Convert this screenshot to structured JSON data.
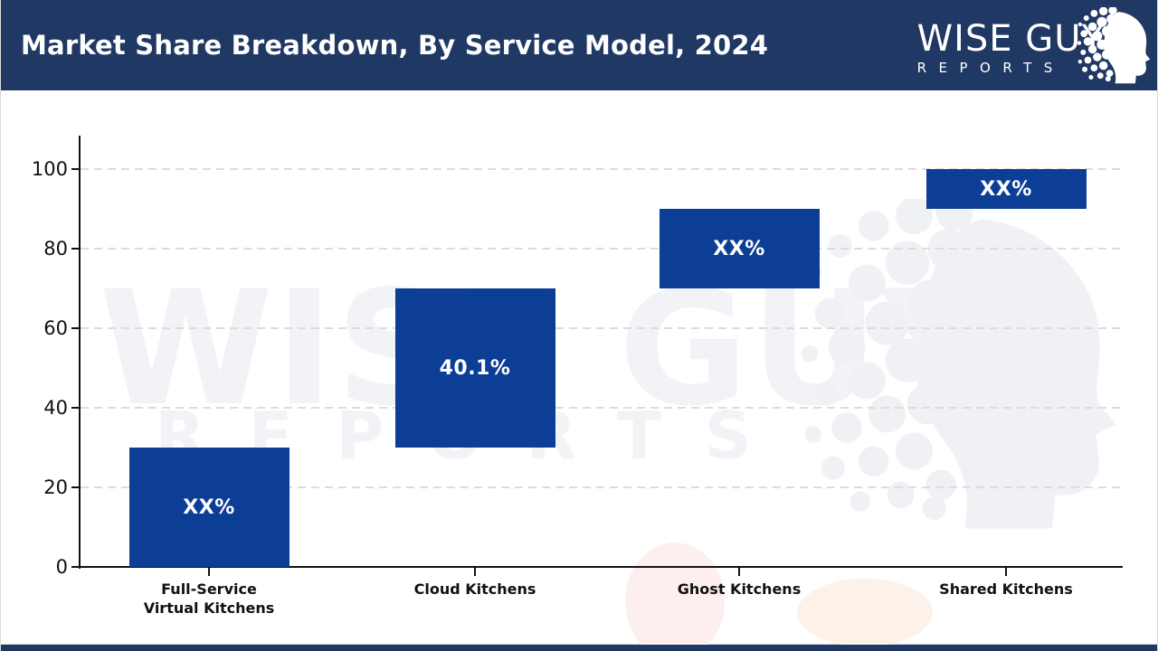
{
  "header": {
    "title": "Market Share Breakdown, By Service Model, 2024",
    "logo": {
      "line1": "WISE GUY",
      "line2": "REPORTS"
    }
  },
  "watermark": {
    "line1": "WISE GUY",
    "line2": "REPORTS"
  },
  "colors": {
    "header_bg": "#203864",
    "footer_bg": "#203864",
    "bar": "#0c3e96",
    "grid": "#dcdcdc",
    "axis": "#111111",
    "value_label": "#ffffff",
    "watermark": "#f2f3f6"
  },
  "chart_data": {
    "type": "bar",
    "subtype": "floating-range-waterfall",
    "title": "Market Share Breakdown, By Service Model, 2024",
    "categories": [
      "Full-Service Virtual Kitchens",
      "Cloud Kitchens",
      "Ghost Kitchens",
      "Shared Kitchens"
    ],
    "category_label_lines": [
      [
        "Full-Service",
        "Virtual Kitchens"
      ],
      [
        "Cloud Kitchens"
      ],
      [
        "Ghost Kitchens"
      ],
      [
        "Shared Kitchens"
      ]
    ],
    "series": [
      {
        "name": "Market Share",
        "segments": [
          {
            "category": "Full-Service Virtual Kitchens",
            "start": 0,
            "end": 30,
            "label": "XX%"
          },
          {
            "category": "Cloud Kitchens",
            "start": 30,
            "end": 70,
            "label": "40.1%"
          },
          {
            "category": "Ghost Kitchens",
            "start": 70,
            "end": 90,
            "label": "XX%"
          },
          {
            "category": "Shared Kitchens",
            "start": 90,
            "end": 100,
            "label": "XX%"
          }
        ]
      }
    ],
    "xlabel": "",
    "ylabel": "",
    "ylim": [
      0,
      100
    ],
    "yticks": [
      0,
      20,
      40,
      60,
      80,
      100
    ],
    "grid": "horizontal, dashed, light-gray",
    "legend": "none"
  }
}
